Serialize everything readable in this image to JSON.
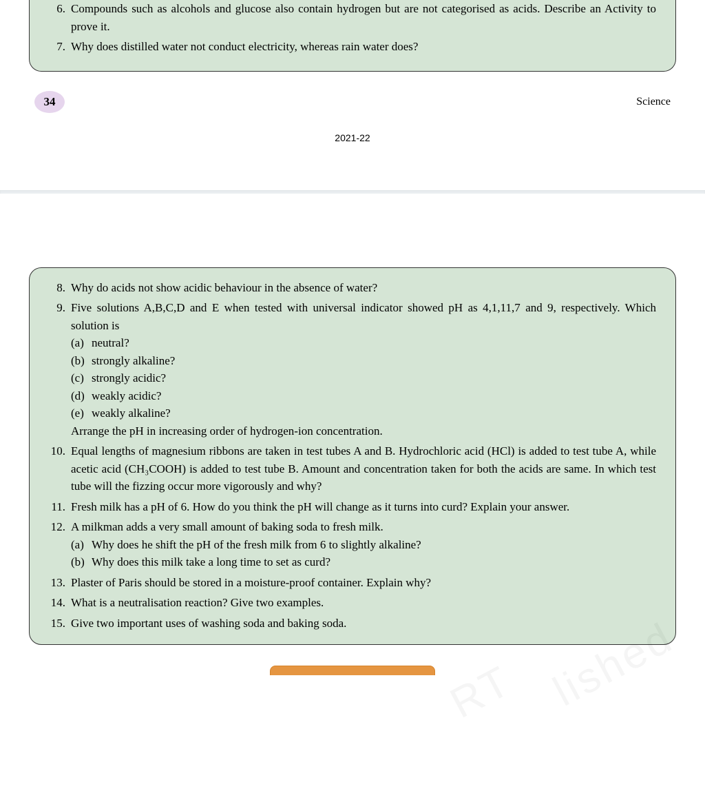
{
  "page1": {
    "questions": [
      {
        "num": "6.",
        "text": "Compounds such as alcohols and glucose also contain hydrogen but are not categorised as acids. Describe an Activity to prove it."
      },
      {
        "num": "7.",
        "text": "Why does distilled water not conduct electricity, whereas rain water does?"
      }
    ],
    "page_number": "34",
    "subject": "Science",
    "year": "2021-22"
  },
  "page2": {
    "questions": [
      {
        "num": "8.",
        "text": "Why do acids not show acidic behaviour in the absence of water?"
      },
      {
        "num": "9.",
        "text": "Five solutions A,B,C,D and E when tested with universal indicator showed pH as 4,1,11,7 and 9, respectively. Which solution is",
        "subs": [
          {
            "label": "(a)",
            "text": "neutral?"
          },
          {
            "label": "(b)",
            "text": "strongly alkaline?"
          },
          {
            "label": "(c)",
            "text": "strongly acidic?"
          },
          {
            "label": "(d)",
            "text": "weakly acidic?"
          },
          {
            "label": "(e)",
            "text": "weakly alkaline?"
          }
        ],
        "arrange": "Arrange the pH in increasing order of hydrogen-ion concentration."
      },
      {
        "num": "10.",
        "text": "Equal lengths of magnesium ribbons are taken in test tubes A and B. Hydrochloric acid (HCl) is added to test tube A, while acetic acid (CH₃COOH) is added to test tube B. Amount and concentration taken for both the acids are same. In which test tube will the fizzing occur more vigorously and why?"
      },
      {
        "num": "11.",
        "text": "Fresh milk has a pH of 6. How do you think the pH will change as it turns into curd? Explain your answer."
      },
      {
        "num": "12.",
        "text": "A milkman adds a very small amount of baking soda to fresh milk.",
        "subs": [
          {
            "label": "(a)",
            "text": "Why does he shift the pH of the fresh milk from 6 to slightly alkaline?"
          },
          {
            "label": "(b)",
            "text": "Why does this milk take a long time to set as curd?"
          }
        ]
      },
      {
        "num": "13.",
        "text": "Plaster of Paris should be stored in a moisture-proof container. Explain why?"
      },
      {
        "num": "14.",
        "text": "What is a neutralisation reaction? Give two examples."
      },
      {
        "num": "15.",
        "text": "Give two important uses of washing soda and baking soda."
      }
    ]
  },
  "styling": {
    "box_bg": "#d5e5d5",
    "box_border": "#333333",
    "box_radius": 18,
    "page_badge_bg": "#e6d5ed",
    "body_bg": "#ffffff",
    "text_color": "#000000",
    "font_family": "Georgia, serif",
    "base_font_size": 17,
    "orange_tab_bg": "#e59541",
    "gap_line_bg": "#eaeef1"
  }
}
